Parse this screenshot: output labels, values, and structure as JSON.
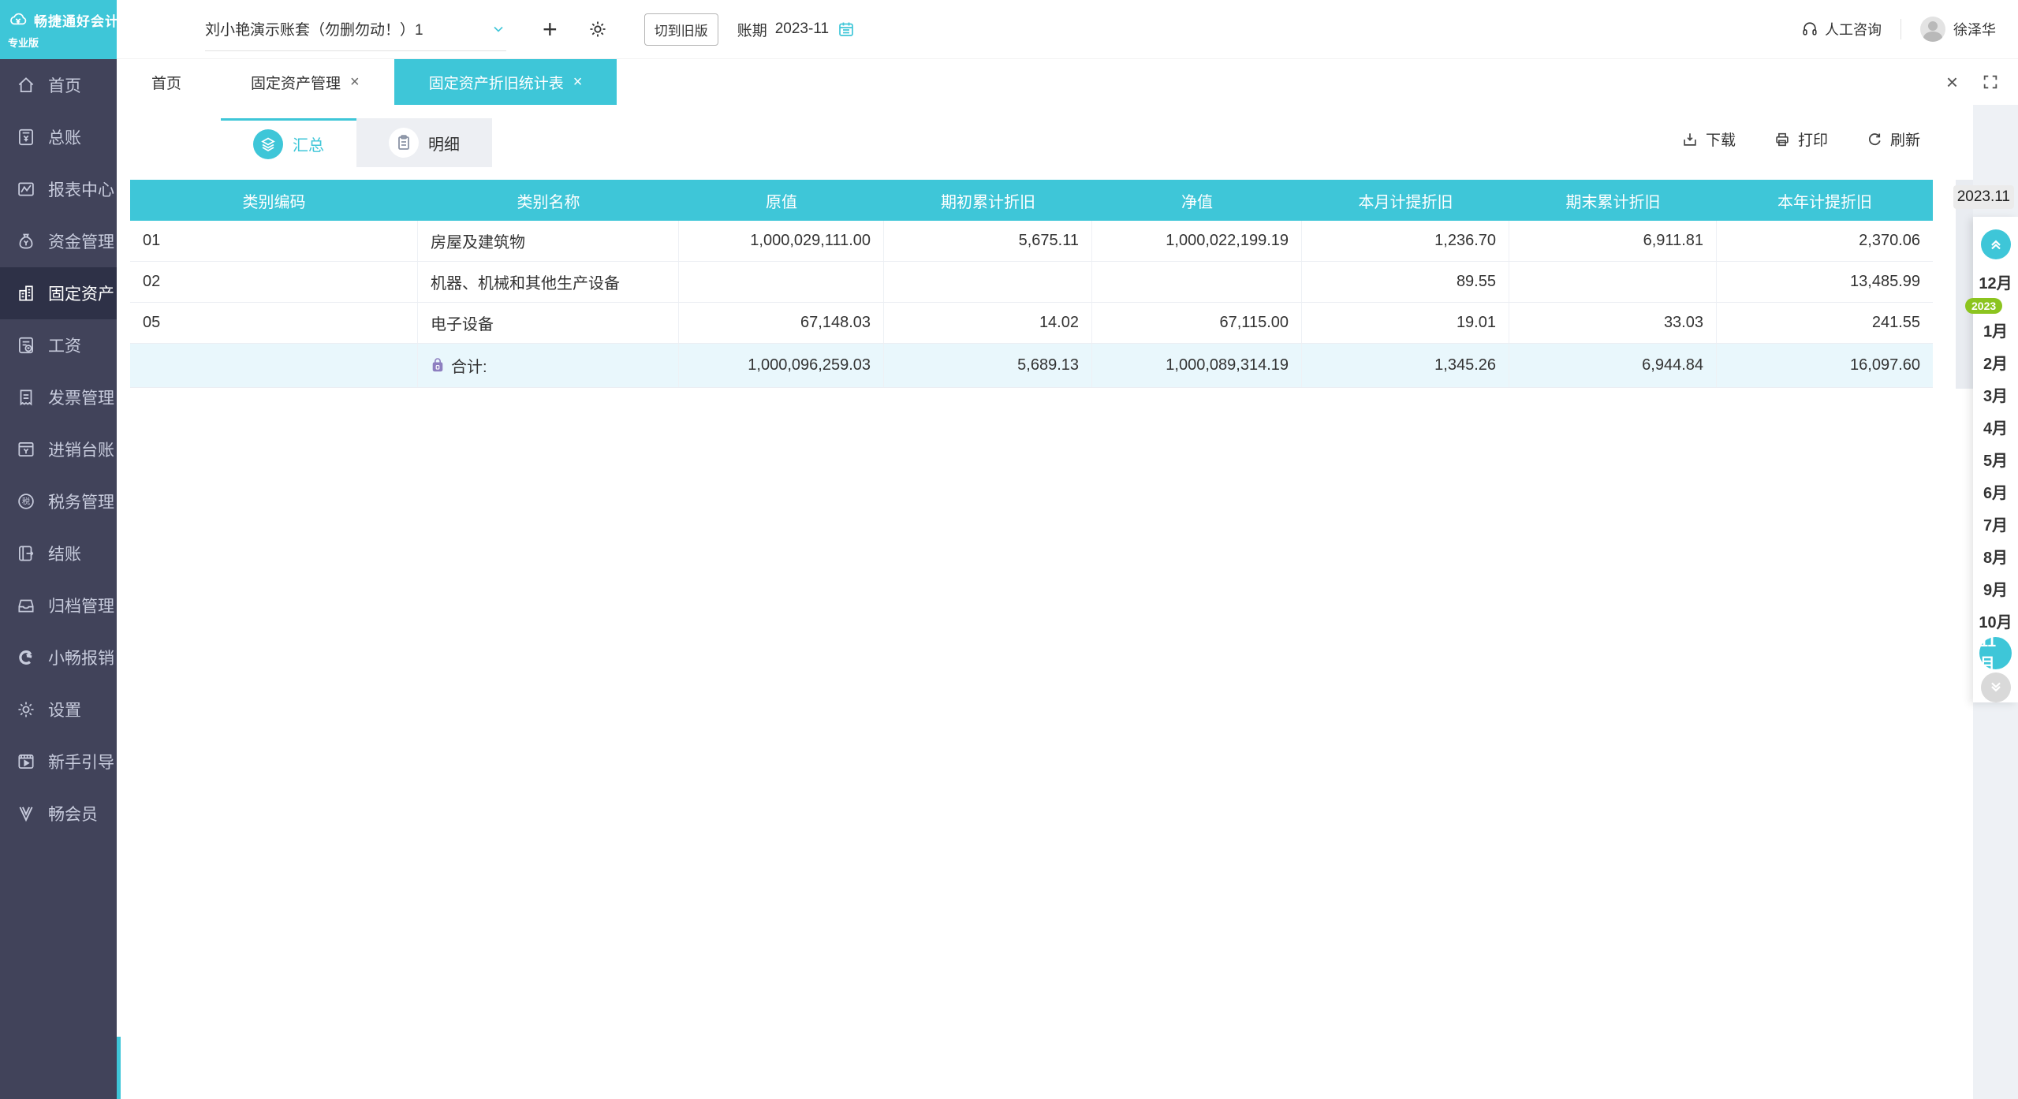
{
  "colors": {
    "accent": "#3ec6d8",
    "sidebar_bg": "#41435a",
    "sidebar_active_bg": "#2e3147",
    "total_row_bg": "#e9f7fc",
    "year_badge_green": "#8cc41f",
    "total_icon_purple": "#8d7fc0"
  },
  "app": {
    "logo_title": "畅捷通好会计",
    "logo_subtitle": "专业版"
  },
  "topbar": {
    "account_name": "刘小艳演示账套（勿删勿动！）1",
    "switch_old_label": "切到旧版",
    "period_label": "账期",
    "period_value": "2023-11",
    "support_label": "人工咨询",
    "username": "徐泽华"
  },
  "sidebar": {
    "items": [
      {
        "id": "home",
        "label": "首页",
        "icon": "home-icon",
        "active": false
      },
      {
        "id": "general-ledger",
        "label": "总账",
        "icon": "ledger-icon",
        "active": false
      },
      {
        "id": "report-center",
        "label": "报表中心",
        "icon": "report-icon",
        "active": false
      },
      {
        "id": "fund-management",
        "label": "资金管理",
        "icon": "fund-icon",
        "active": false
      },
      {
        "id": "fixed-assets",
        "label": "固定资产",
        "icon": "building-icon",
        "active": true
      },
      {
        "id": "salary",
        "label": "工资",
        "icon": "salary-icon",
        "active": false
      },
      {
        "id": "invoice-management",
        "label": "发票管理",
        "icon": "invoice-icon",
        "active": false
      },
      {
        "id": "trade-ledger",
        "label": "进销台账",
        "icon": "trade-icon",
        "active": false
      },
      {
        "id": "tax-management",
        "label": "税务管理",
        "icon": "tax-icon",
        "active": false
      },
      {
        "id": "closing",
        "label": "结账",
        "icon": "closing-icon",
        "active": false
      },
      {
        "id": "archive-management",
        "label": "归档管理",
        "icon": "archive-icon",
        "active": false
      },
      {
        "id": "reimburse",
        "label": "小畅报销",
        "icon": "reimburse-icon",
        "active": false
      },
      {
        "id": "settings",
        "label": "设置",
        "icon": "gear-icon",
        "active": false
      },
      {
        "id": "beginner-guide",
        "label": "新手引导",
        "icon": "guide-icon",
        "active": false
      },
      {
        "id": "member",
        "label": "畅会员",
        "icon": "member-icon",
        "active": false
      }
    ]
  },
  "tabs": [
    {
      "id": "home",
      "label": "首页",
      "closable": false,
      "active": false
    },
    {
      "id": "fixed-asset-management",
      "label": "固定资产管理",
      "closable": true,
      "active": false
    },
    {
      "id": "depreciation-statistics",
      "label": "固定资产折旧统计表",
      "closable": true,
      "active": true
    }
  ],
  "toolbar": {
    "summary_label": "汇总",
    "detail_label": "明细",
    "download_label": "下载",
    "print_label": "打印",
    "refresh_label": "刷新"
  },
  "table": {
    "headers": [
      "类别编码",
      "类别名称",
      "原值",
      "期初累计折旧",
      "净值",
      "本月计提折旧",
      "期末累计折旧",
      "本年计提折旧"
    ],
    "rows": [
      [
        "01",
        "房屋及建筑物",
        "1,000,029,111.00",
        "5,675.11",
        "1,000,022,199.19",
        "1,236.70",
        "6,911.81",
        "2,370.06"
      ],
      [
        "02",
        "机器、机械和其他生产设备",
        "",
        "",
        "",
        "89.55",
        "",
        "13,485.99"
      ],
      [
        "05",
        "电子设备",
        "67,148.03",
        "14.02",
        "67,115.00",
        "19.01",
        "33.03",
        "241.55"
      ]
    ],
    "total": {
      "label": "合计:",
      "values": [
        "1,000,096,259.03",
        "5,689.13",
        "1,000,089,314.19",
        "1,345.26",
        "6,944.84",
        "16,097.60"
      ]
    }
  },
  "calendar": {
    "current_period": "2023.11",
    "months_before": [
      "12月"
    ],
    "year_badge": "2023",
    "months_after": [
      "1月",
      "2月",
      "3月",
      "4月",
      "5月",
      "6月",
      "7月",
      "8月",
      "9月",
      "10月"
    ],
    "selected_month": "11月"
  }
}
